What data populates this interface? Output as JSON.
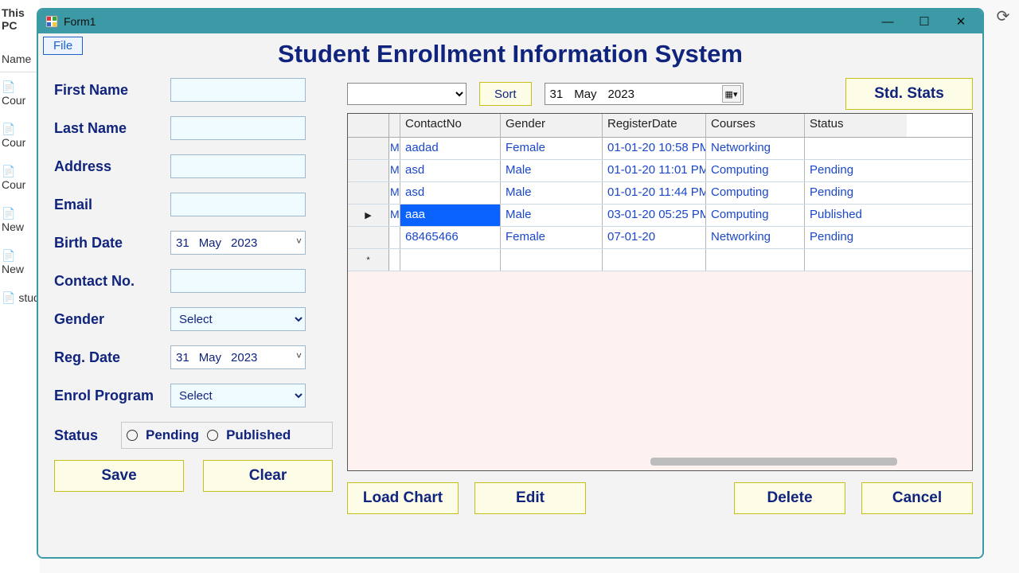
{
  "bg": {
    "thispc": "This PC",
    "name": "Name",
    "items": [
      "Cour",
      "Cour",
      "Cour",
      "New",
      "New",
      "stud"
    ]
  },
  "window": {
    "title": "Form1",
    "menu_file": "File",
    "heading": "Student Enrollment Information System"
  },
  "form": {
    "first_name": {
      "label": "First Name",
      "value": ""
    },
    "last_name": {
      "label": "Last Name",
      "value": ""
    },
    "address": {
      "label": "Address",
      "value": ""
    },
    "email": {
      "label": "Email",
      "value": ""
    },
    "birth_date": {
      "label": "Birth Date",
      "d": "31",
      "m": "May",
      "y": "2023"
    },
    "contact_no": {
      "label": "Contact No.",
      "value": ""
    },
    "gender": {
      "label": "Gender",
      "value": "Select"
    },
    "reg_date": {
      "label": "Reg. Date",
      "d": "31",
      "m": "May",
      "y": "2023"
    },
    "program": {
      "label": "Enrol Program",
      "value": "Select"
    },
    "status": {
      "label": "Status",
      "opt1": "Pending",
      "opt2": "Published"
    }
  },
  "top": {
    "sort": "Sort",
    "date": {
      "d": "31",
      "m": "May",
      "y": "2023"
    },
    "stats": "Std. Stats"
  },
  "grid": {
    "headers": {
      "contact": "ContactNo",
      "gender": "Gender",
      "reg": "RegisterDate",
      "course": "Courses",
      "status": "Status"
    },
    "rows": [
      {
        "m": "M",
        "contact": "aadad",
        "gender": "Female",
        "reg": "01-01-20 10:58 PM",
        "course": "Networking",
        "status": "",
        "current": false,
        "sel": false
      },
      {
        "m": "M",
        "contact": "asd",
        "gender": "Male",
        "reg": "01-01-20 11:01 PM",
        "course": "Computing",
        "status": "Pending",
        "current": false,
        "sel": false
      },
      {
        "m": "M",
        "contact": "asd",
        "gender": "Male",
        "reg": "01-01-20 11:44 PM",
        "course": "Computing",
        "status": "Pending",
        "current": false,
        "sel": false
      },
      {
        "m": "M",
        "contact": "aaa",
        "gender": "Male",
        "reg": "03-01-20 05:25 PM",
        "course": "Computing",
        "status": "Published",
        "current": true,
        "sel": true
      },
      {
        "m": "",
        "contact": "68465466",
        "gender": "Female",
        "reg": "07-01-20",
        "course": "Networking",
        "status": "Pending",
        "current": false,
        "sel": false
      }
    ]
  },
  "buttons": {
    "save": "Save",
    "clear": "Clear",
    "load_chart": "Load Chart",
    "edit": "Edit",
    "delete": "Delete",
    "cancel": "Cancel"
  },
  "colors": {
    "accent": "#10247e",
    "link": "#1b47c9",
    "titlebar": "#3c9aa6",
    "btn_bg": "#fcfce7",
    "btn_border": "#c7c01a",
    "grid_bg": "#fdf2ef",
    "sel_bg": "#0a63ff"
  }
}
